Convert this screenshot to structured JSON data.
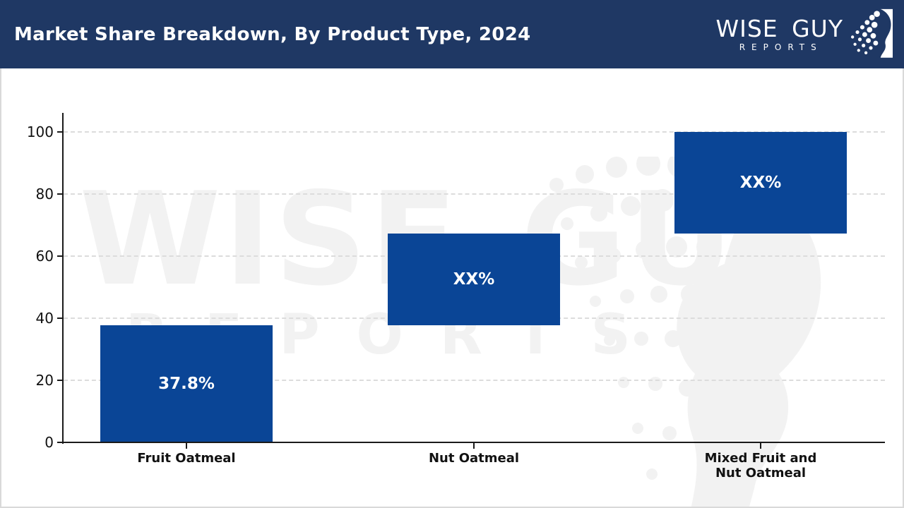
{
  "header": {
    "title": "Market Share Breakdown, By Product Type, 2024",
    "bg_color": "#1f3864",
    "logo": {
      "wordmark": "WISE GUY",
      "subtitle": "REPORTS"
    }
  },
  "watermark": {
    "wordmark": "WISE GUY",
    "subtitle": "REPORTS"
  },
  "chart_data": {
    "type": "bar",
    "variant": "floating-segment-waterfall",
    "title": "Market Share Breakdown, By Product Type, 2024",
    "categories": [
      "Fruit Oatmeal",
      "Nut Oatmeal",
      "Mixed Fruit and\nNut Oatmeal"
    ],
    "segments": [
      {
        "category": "Fruit Oatmeal",
        "start": 0,
        "end": 37.8,
        "label": "37.8%"
      },
      {
        "category": "Nut Oatmeal",
        "start": 37.8,
        "end": 67.3,
        "label": "XX%"
      },
      {
        "category": "Mixed Fruit and Nut Oatmeal",
        "start": 67.3,
        "end": 100,
        "label": "XX%"
      }
    ],
    "xlabel": "",
    "ylabel": "",
    "yticks": [
      0,
      20,
      40,
      60,
      80,
      100
    ],
    "ylim": [
      0,
      106
    ],
    "grid": "horizontal-dashed",
    "legend": "none",
    "colors": {
      "bar": "#0a4596",
      "bar_label": "#ffffff",
      "axis": "#1a1a1a",
      "grid": "#dcdcdc",
      "tick_label": "#111111",
      "header_bg": "#1f3864",
      "watermark": "#f2f2f2"
    }
  }
}
